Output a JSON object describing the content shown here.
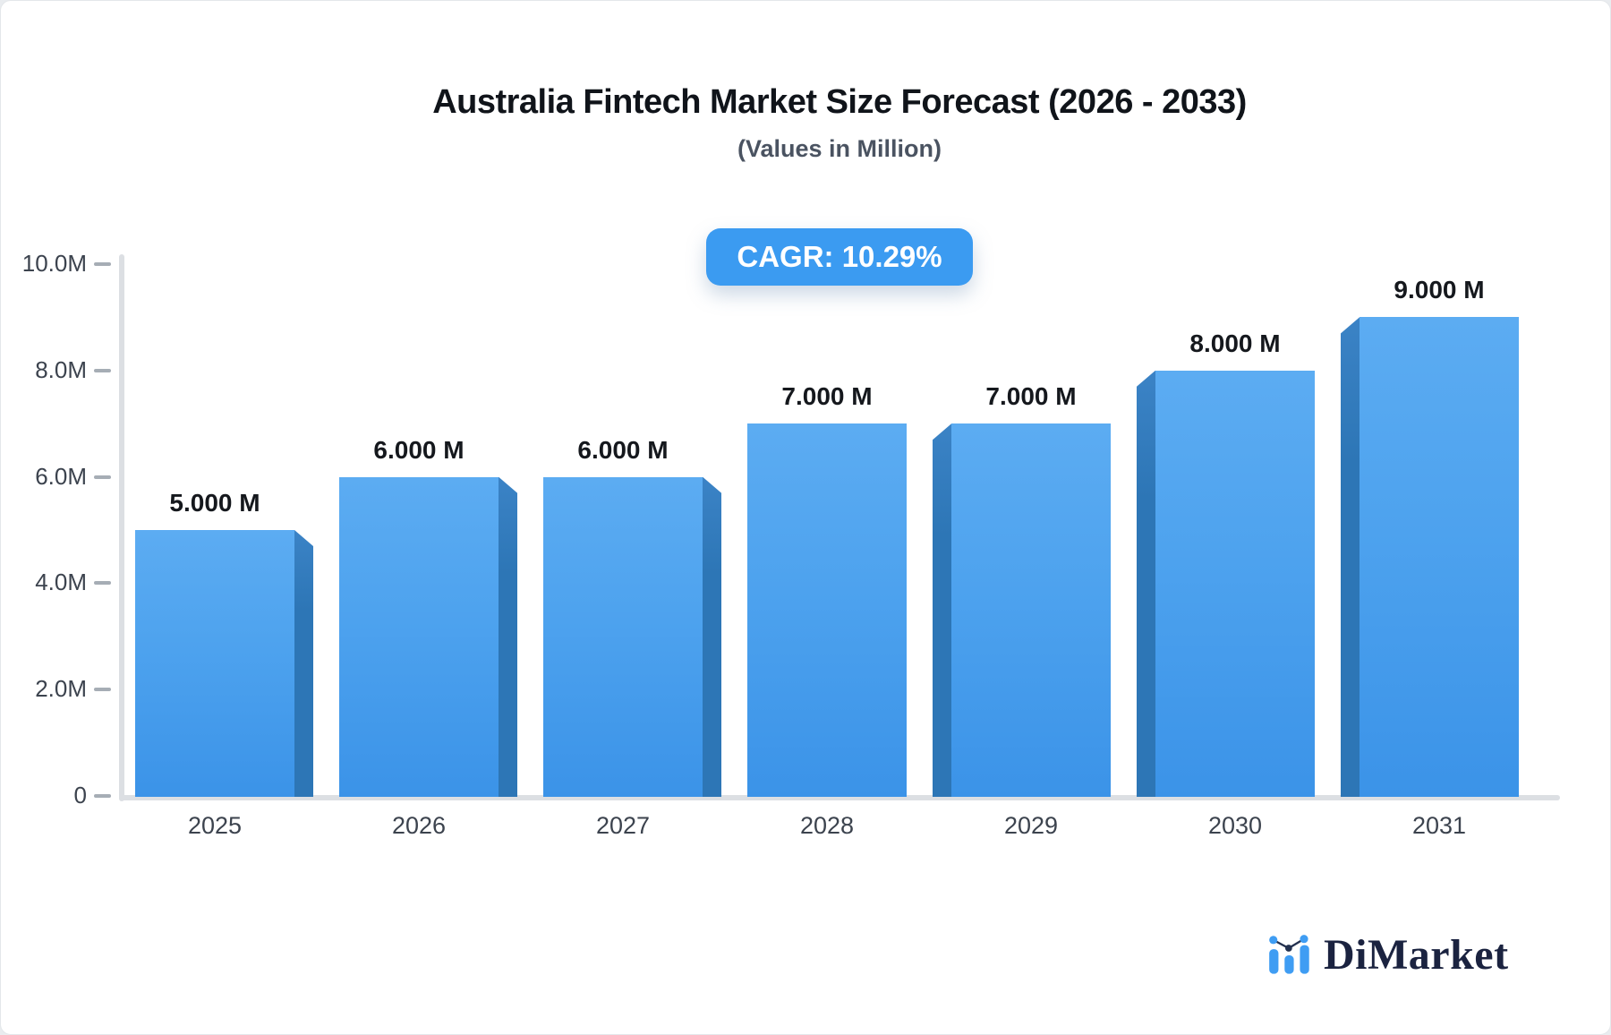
{
  "header": {
    "title": "Australia Fintech Market Size Forecast (2026 - 2033)",
    "subtitle": "(Values in Million)"
  },
  "badge": {
    "label": "CAGR: 10.29%",
    "background": "#3b9bf1",
    "text_color": "#ffffff"
  },
  "logo": {
    "text": "DiMarket",
    "icon": "mini-bar-chart-sparkline-icon",
    "text_color": "#1b2340",
    "icon_blue": "#3f9df3"
  },
  "chart_data": {
    "type": "bar",
    "title": "Australia Fintech Market Size Forecast (2026 - 2033)",
    "subtitle": "(Values in Million)",
    "unit": "Million",
    "categories": [
      "2025",
      "2026",
      "2027",
      "2028",
      "2029",
      "2030",
      "2031"
    ],
    "values": [
      5,
      6,
      6,
      7,
      7,
      8,
      9
    ],
    "value_labels": [
      "5.000 M",
      "6.000 M",
      "6.000 M",
      "7.000 M",
      "7.000 M",
      "8.000 M",
      "9.000 M"
    ],
    "xlabel": "",
    "ylabel": "",
    "ylim": [
      0,
      10
    ],
    "yticks": {
      "values": [
        0,
        2,
        4,
        6,
        8,
        10
      ],
      "labels": [
        "0",
        "2.0M",
        "4.0M",
        "6.0M",
        "8.0M",
        "10.0M"
      ]
    },
    "grid": false,
    "legend": false,
    "annotations": [
      "CAGR: 10.29%"
    ],
    "bar_style": {
      "effect": "3d-perspective-toward-center",
      "front_top": "#5cacf2",
      "front_bottom": "#3b93e8",
      "side": "#2d76b6"
    }
  }
}
